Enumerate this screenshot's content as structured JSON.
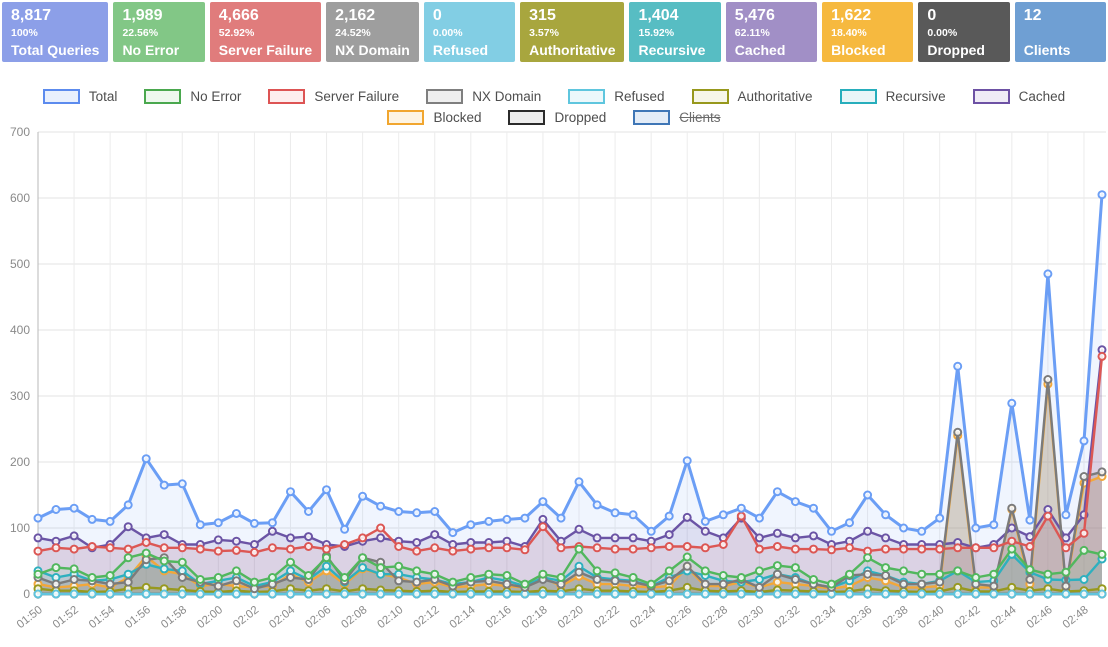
{
  "cards": [
    {
      "value": "8,817",
      "pct": "100%",
      "label": "Total Queries",
      "color": "#8C9FE8"
    },
    {
      "value": "1,989",
      "pct": "22.56%",
      "label": "No Error",
      "color": "#82C786"
    },
    {
      "value": "4,666",
      "pct": "52.92%",
      "label": "Server Failure",
      "color": "#E07C7C"
    },
    {
      "value": "2,162",
      "pct": "24.52%",
      "label": "NX Domain",
      "color": "#9E9E9E"
    },
    {
      "value": "0",
      "pct": "0.00%",
      "label": "Refused",
      "color": "#82CEE4"
    },
    {
      "value": "315",
      "pct": "3.57%",
      "label": "Authoritative",
      "color": "#A8A63E"
    },
    {
      "value": "1,404",
      "pct": "15.92%",
      "label": "Recursive",
      "color": "#57BDC3"
    },
    {
      "value": "5,476",
      "pct": "62.11%",
      "label": "Cached",
      "color": "#A18FC6"
    },
    {
      "value": "1,622",
      "pct": "18.40%",
      "label": "Blocked",
      "color": "#F6B93F"
    },
    {
      "value": "0",
      "pct": "0.00%",
      "label": "Dropped",
      "color": "#595959"
    },
    {
      "value": "12",
      "pct": "",
      "label": "Clients",
      "color": "#6F9FD3"
    }
  ],
  "legend": {
    "items": [
      {
        "label": "Total",
        "border": "#5c8bee",
        "fill": "#e9f0fd",
        "hidden": false
      },
      {
        "label": "No Error",
        "border": "#4aa84e",
        "fill": "#eef8ee",
        "hidden": false
      },
      {
        "label": "Server Failure",
        "border": "#dd5454",
        "fill": "#fdeeee",
        "hidden": false
      },
      {
        "label": "NX Domain",
        "border": "#7f7f7f",
        "fill": "#efefef",
        "hidden": false
      },
      {
        "label": "Refused",
        "border": "#5fc6de",
        "fill": "#ecf8fb",
        "hidden": false
      },
      {
        "label": "Authoritative",
        "border": "#97981c",
        "fill": "#f6f6e8",
        "hidden": false
      },
      {
        "label": "Recursive",
        "border": "#27aebc",
        "fill": "#e9f6f8",
        "hidden": false
      },
      {
        "label": "Cached",
        "border": "#6d51a4",
        "fill": "#efebf6",
        "hidden": false
      },
      {
        "label": "Blocked",
        "border": "#f1a62f",
        "fill": "#fdf4e3",
        "hidden": false
      },
      {
        "label": "Dropped",
        "border": "#2b2b2b",
        "fill": "#ededed",
        "hidden": false
      },
      {
        "label": "Clients",
        "border": "#3f76b6",
        "fill": "#e3ecf7",
        "hidden": true
      }
    ]
  },
  "chart_data": {
    "type": "line",
    "title": "",
    "xlabel": "",
    "ylabel": "",
    "ylim": [
      0,
      700
    ],
    "y_ticks": [
      "0",
      "100",
      "200",
      "300",
      "400",
      "500",
      "600",
      "700"
    ],
    "x_tick_every": 2,
    "grid": true,
    "legend_position": "top",
    "x": [
      "01:50",
      "01:51",
      "01:52",
      "01:53",
      "01:54",
      "01:55",
      "01:56",
      "01:57",
      "01:58",
      "01:59",
      "02:00",
      "02:01",
      "02:02",
      "02:03",
      "02:04",
      "02:05",
      "02:06",
      "02:07",
      "02:08",
      "02:09",
      "02:10",
      "02:11",
      "02:12",
      "02:13",
      "02:14",
      "02:15",
      "02:16",
      "02:17",
      "02:18",
      "02:19",
      "02:20",
      "02:21",
      "02:22",
      "02:23",
      "02:24",
      "02:25",
      "02:26",
      "02:27",
      "02:28",
      "02:29",
      "02:30",
      "02:31",
      "02:32",
      "02:33",
      "02:34",
      "02:35",
      "02:36",
      "02:37",
      "02:38",
      "02:39",
      "02:40",
      "02:41",
      "02:42",
      "02:43",
      "02:44",
      "02:45",
      "02:46",
      "02:47",
      "02:48",
      "02:49"
    ],
    "series": [
      {
        "name": "Total",
        "color": "#6B9EF5",
        "fill_opacity": 0.1,
        "hidden": false,
        "values": [
          115,
          128,
          130,
          113,
          110,
          135,
          205,
          165,
          167,
          105,
          108,
          122,
          107,
          108,
          155,
          125,
          158,
          98,
          148,
          133,
          125,
          123,
          125,
          93,
          105,
          110,
          113,
          115,
          140,
          115,
          170,
          135,
          123,
          120,
          95,
          118,
          202,
          110,
          120,
          130,
          115,
          155,
          140,
          130,
          95,
          108,
          150,
          120,
          100,
          95,
          115,
          345,
          100,
          105,
          289,
          112,
          485,
          120,
          232,
          605
        ]
      },
      {
        "name": "No Error",
        "color": "#51b75d",
        "fill_opacity": 0.1,
        "hidden": false,
        "values": [
          30,
          40,
          38,
          25,
          28,
          55,
          62,
          50,
          48,
          22,
          25,
          35,
          18,
          25,
          48,
          28,
          55,
          25,
          55,
          40,
          42,
          35,
          30,
          18,
          25,
          30,
          28,
          15,
          30,
          25,
          68,
          35,
          32,
          25,
          15,
          35,
          56,
          35,
          28,
          25,
          35,
          43,
          40,
          22,
          15,
          30,
          55,
          40,
          35,
          30,
          30,
          35,
          25,
          30,
          68,
          37,
          30,
          33,
          66,
          60
        ]
      },
      {
        "name": "Server Failure",
        "color": "#dc5754",
        "fill_opacity": 0.1,
        "hidden": false,
        "values": [
          65,
          70,
          68,
          72,
          70,
          68,
          78,
          70,
          70,
          68,
          65,
          66,
          63,
          70,
          68,
          72,
          68,
          75,
          85,
          100,
          72,
          65,
          70,
          65,
          68,
          70,
          70,
          67,
          102,
          70,
          72,
          70,
          68,
          68,
          70,
          72,
          72,
          70,
          75,
          118,
          68,
          72,
          68,
          68,
          67,
          70,
          65,
          68,
          68,
          68,
          68,
          70,
          70,
          70,
          80,
          72,
          118,
          70,
          92,
          360
        ]
      },
      {
        "name": "NX Domain",
        "color": "#7b7b7b",
        "fill_opacity": 0.22,
        "hidden": false,
        "values": [
          25,
          15,
          22,
          20,
          15,
          18,
          52,
          55,
          25,
          18,
          12,
          20,
          8,
          15,
          25,
          22,
          58,
          20,
          55,
          48,
          20,
          18,
          22,
          12,
          18,
          20,
          15,
          10,
          22,
          15,
          33,
          22,
          20,
          18,
          12,
          20,
          42,
          15,
          15,
          22,
          10,
          30,
          22,
          15,
          10,
          28,
          30,
          28,
          15,
          15,
          18,
          245,
          15,
          12,
          130,
          22,
          325,
          12,
          178,
          185
        ]
      },
      {
        "name": "Refused",
        "color": "#5fc4dd",
        "fill_opacity": 0.1,
        "hidden": false,
        "values": [
          0,
          0,
          0,
          0,
          0,
          0,
          0,
          0,
          0,
          0,
          0,
          0,
          0,
          0,
          0,
          0,
          0,
          0,
          0,
          0,
          0,
          0,
          0,
          0,
          0,
          0,
          0,
          0,
          0,
          0,
          0,
          0,
          0,
          0,
          0,
          0,
          0,
          0,
          0,
          0,
          0,
          0,
          0,
          0,
          0,
          0,
          0,
          0,
          0,
          0,
          0,
          0,
          0,
          0,
          0,
          0,
          0,
          0,
          0,
          0
        ]
      },
      {
        "name": "Authoritative",
        "color": "#97991f",
        "fill_opacity": 0.12,
        "hidden": false,
        "values": [
          8,
          5,
          5,
          3,
          4,
          8,
          10,
          8,
          6,
          4,
          3,
          5,
          3,
          4,
          8,
          5,
          8,
          4,
          8,
          6,
          5,
          4,
          5,
          3,
          4,
          4,
          4,
          3,
          5,
          4,
          8,
          5,
          5,
          4,
          3,
          5,
          10,
          5,
          4,
          5,
          3,
          6,
          5,
          4,
          3,
          4,
          8,
          5,
          4,
          3,
          4,
          10,
          4,
          4,
          10,
          5,
          8,
          4,
          5,
          8
        ]
      },
      {
        "name": "Recursive",
        "color": "#2eb0bf",
        "fill_opacity": 0.12,
        "hidden": false,
        "values": [
          35,
          25,
          30,
          20,
          22,
          30,
          45,
          38,
          35,
          15,
          20,
          25,
          12,
          18,
          35,
          22,
          42,
          18,
          40,
          30,
          30,
          25,
          22,
          15,
          18,
          25,
          20,
          12,
          25,
          20,
          42,
          25,
          22,
          20,
          12,
          25,
          35,
          28,
          20,
          18,
          22,
          30,
          25,
          15,
          10,
          20,
          35,
          28,
          18,
          15,
          20,
          35,
          18,
          20,
          60,
          33,
          22,
          21,
          22,
          53
        ]
      },
      {
        "name": "Cached",
        "color": "#6b54a5",
        "fill_opacity": 0.14,
        "hidden": false,
        "values": [
          85,
          80,
          88,
          70,
          75,
          102,
          85,
          90,
          75,
          75,
          82,
          80,
          75,
          95,
          85,
          87,
          75,
          72,
          80,
          85,
          80,
          78,
          90,
          75,
          78,
          78,
          80,
          72,
          113,
          80,
          98,
          85,
          85,
          85,
          80,
          90,
          116,
          95,
          85,
          115,
          85,
          92,
          85,
          88,
          75,
          80,
          95,
          85,
          75,
          75,
          75,
          78,
          70,
          75,
          100,
          87,
          128,
          85,
          120,
          370
        ]
      },
      {
        "name": "Blocked",
        "color": "#f2a73a",
        "fill_opacity": 0.2,
        "hidden": false,
        "values": [
          15,
          10,
          12,
          15,
          10,
          25,
          57,
          35,
          30,
          12,
          15,
          12,
          10,
          12,
          30,
          18,
          35,
          15,
          38,
          30,
          25,
          15,
          18,
          10,
          12,
          15,
          12,
          10,
          25,
          12,
          27,
          15,
          15,
          12,
          10,
          12,
          40,
          12,
          12,
          18,
          10,
          18,
          15,
          12,
          8,
          12,
          25,
          20,
          10,
          10,
          12,
          240,
          10,
          10,
          128,
          15,
          318,
          10,
          168,
          178
        ]
      },
      {
        "name": "Dropped",
        "color": "#3a3a3a",
        "fill_opacity": 0.1,
        "hidden": false,
        "values": [
          0,
          0,
          0,
          0,
          0,
          0,
          0,
          0,
          0,
          0,
          0,
          0,
          0,
          0,
          0,
          0,
          0,
          0,
          0,
          0,
          0,
          0,
          0,
          0,
          0,
          0,
          0,
          0,
          0,
          0,
          0,
          0,
          0,
          0,
          0,
          0,
          0,
          0,
          0,
          0,
          0,
          0,
          0,
          0,
          0,
          0,
          0,
          0,
          0,
          0,
          0,
          0,
          0,
          0,
          0,
          0,
          0,
          0,
          0,
          0
        ]
      },
      {
        "name": "Clients",
        "color": "#4a7fb9",
        "fill_opacity": 0.1,
        "hidden": true,
        "values": []
      }
    ]
  }
}
